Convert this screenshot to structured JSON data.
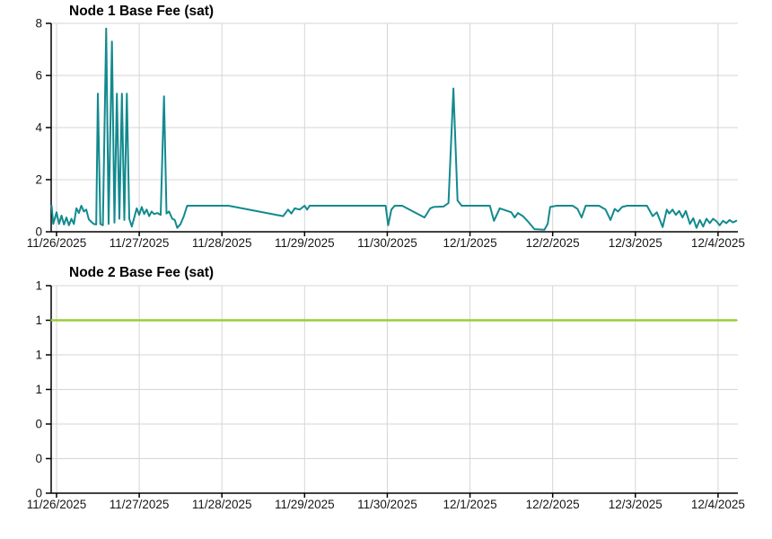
{
  "page": {
    "background": "#ffffff"
  },
  "chart_data": [
    {
      "type": "line",
      "title": "Node 1 Base Fee (sat)",
      "line_color": "#128A8E",
      "grid": true,
      "legend": "none",
      "x_tick_labels": [
        "11/26/2025",
        "11/27/2025",
        "11/28/2025",
        "11/29/2025",
        "11/30/2025",
        "12/1/2025",
        "12/2/2025",
        "12/3/2025",
        "12/4/2025"
      ],
      "x_tick_values": [
        0,
        1,
        2,
        3,
        4,
        5,
        6,
        7,
        8
      ],
      "x_domain": [
        -0.065,
        8.24
      ],
      "y_tick_labels": [
        "8",
        "6",
        "4",
        "2",
        "0"
      ],
      "y_tick_values": [
        8,
        6,
        4,
        2,
        0
      ],
      "y_domain": [
        0,
        8
      ],
      "points": [
        [
          -0.06,
          1.0
        ],
        [
          -0.04,
          0.3
        ],
        [
          0.0,
          0.75
        ],
        [
          0.03,
          0.3
        ],
        [
          0.06,
          0.62
        ],
        [
          0.09,
          0.28
        ],
        [
          0.12,
          0.55
        ],
        [
          0.15,
          0.25
        ],
        [
          0.18,
          0.5
        ],
        [
          0.21,
          0.3
        ],
        [
          0.24,
          0.9
        ],
        [
          0.27,
          0.72
        ],
        [
          0.3,
          1.0
        ],
        [
          0.33,
          0.78
        ],
        [
          0.36,
          0.85
        ],
        [
          0.39,
          0.48
        ],
        [
          0.42,
          0.38
        ],
        [
          0.45,
          0.3
        ],
        [
          0.48,
          0.28
        ],
        [
          0.5,
          5.3
        ],
        [
          0.53,
          0.3
        ],
        [
          0.56,
          0.25
        ],
        [
          0.6,
          7.8
        ],
        [
          0.63,
          0.3
        ],
        [
          0.67,
          7.3
        ],
        [
          0.7,
          0.35
        ],
        [
          0.73,
          5.3
        ],
        [
          0.76,
          0.5
        ],
        [
          0.79,
          5.3
        ],
        [
          0.82,
          0.45
        ],
        [
          0.85,
          5.3
        ],
        [
          0.88,
          0.5
        ],
        [
          0.91,
          0.2
        ],
        [
          0.94,
          0.55
        ],
        [
          0.97,
          0.9
        ],
        [
          1.0,
          0.65
        ],
        [
          1.03,
          0.95
        ],
        [
          1.06,
          0.68
        ],
        [
          1.09,
          0.85
        ],
        [
          1.12,
          0.6
        ],
        [
          1.15,
          0.78
        ],
        [
          1.18,
          0.68
        ],
        [
          1.22,
          0.72
        ],
        [
          1.26,
          0.65
        ],
        [
          1.3,
          5.2
        ],
        [
          1.33,
          0.7
        ],
        [
          1.36,
          0.78
        ],
        [
          1.4,
          0.5
        ],
        [
          1.43,
          0.45
        ],
        [
          1.46,
          0.15
        ],
        [
          1.5,
          0.3
        ],
        [
          1.54,
          0.6
        ],
        [
          1.58,
          1.0
        ],
        [
          2.08,
          1.0
        ],
        [
          2.74,
          0.6
        ],
        [
          2.8,
          0.85
        ],
        [
          2.84,
          0.7
        ],
        [
          2.88,
          0.9
        ],
        [
          2.94,
          0.85
        ],
        [
          3.0,
          1.0
        ],
        [
          3.03,
          0.85
        ],
        [
          3.06,
          1.0
        ],
        [
          3.98,
          1.0
        ],
        [
          4.01,
          0.25
        ],
        [
          4.05,
          0.85
        ],
        [
          4.09,
          1.0
        ],
        [
          4.18,
          1.0
        ],
        [
          4.45,
          0.55
        ],
        [
          4.52,
          0.9
        ],
        [
          4.56,
          0.95
        ],
        [
          4.68,
          0.97
        ],
        [
          4.74,
          1.1
        ],
        [
          4.8,
          5.5
        ],
        [
          4.85,
          1.2
        ],
        [
          4.9,
          1.0
        ],
        [
          5.24,
          1.0
        ],
        [
          5.29,
          0.42
        ],
        [
          5.36,
          0.9
        ],
        [
          5.5,
          0.75
        ],
        [
          5.54,
          0.55
        ],
        [
          5.58,
          0.72
        ],
        [
          5.64,
          0.6
        ],
        [
          5.7,
          0.4
        ],
        [
          5.78,
          0.1
        ],
        [
          5.9,
          0.08
        ],
        [
          5.94,
          0.3
        ],
        [
          5.97,
          0.95
        ],
        [
          6.05,
          1.0
        ],
        [
          6.24,
          1.0
        ],
        [
          6.3,
          0.88
        ],
        [
          6.35,
          0.55
        ],
        [
          6.4,
          1.0
        ],
        [
          6.56,
          1.0
        ],
        [
          6.64,
          0.85
        ],
        [
          6.7,
          0.45
        ],
        [
          6.75,
          0.88
        ],
        [
          6.79,
          0.78
        ],
        [
          6.84,
          0.95
        ],
        [
          6.9,
          1.0
        ],
        [
          7.14,
          1.0
        ],
        [
          7.21,
          0.6
        ],
        [
          7.26,
          0.75
        ],
        [
          7.33,
          0.18
        ],
        [
          7.38,
          0.85
        ],
        [
          7.41,
          0.7
        ],
        [
          7.45,
          0.85
        ],
        [
          7.49,
          0.65
        ],
        [
          7.53,
          0.8
        ],
        [
          7.57,
          0.55
        ],
        [
          7.61,
          0.8
        ],
        [
          7.66,
          0.3
        ],
        [
          7.7,
          0.52
        ],
        [
          7.74,
          0.15
        ],
        [
          7.78,
          0.45
        ],
        [
          7.82,
          0.2
        ],
        [
          7.86,
          0.5
        ],
        [
          7.9,
          0.33
        ],
        [
          7.94,
          0.5
        ],
        [
          7.98,
          0.4
        ],
        [
          8.02,
          0.25
        ],
        [
          8.06,
          0.42
        ],
        [
          8.1,
          0.33
        ],
        [
          8.14,
          0.45
        ],
        [
          8.18,
          0.36
        ],
        [
          8.22,
          0.42
        ]
      ]
    },
    {
      "type": "line",
      "title": "Node 2 Base Fee (sat)",
      "line_color": "#9CCB3B",
      "grid": true,
      "legend": "none",
      "x_tick_labels": [
        "11/26/2025",
        "11/27/2025",
        "11/28/2025",
        "11/29/2025",
        "11/30/2025",
        "12/1/2025",
        "12/2/2025",
        "12/3/2025",
        "12/4/2025"
      ],
      "x_tick_values": [
        0,
        1,
        2,
        3,
        4,
        5,
        6,
        7,
        8
      ],
      "x_domain": [
        -0.065,
        8.24
      ],
      "y_tick_labels": [
        "1",
        "1",
        "1",
        "1",
        "0",
        "0",
        "0"
      ],
      "y_tick_values": [
        1.2,
        1.0,
        0.8,
        0.6,
        0.4,
        0.2,
        0
      ],
      "y_domain": [
        0,
        1.2
      ],
      "points": [
        [
          -0.06,
          1.0
        ],
        [
          8.22,
          1.0
        ]
      ]
    }
  ]
}
